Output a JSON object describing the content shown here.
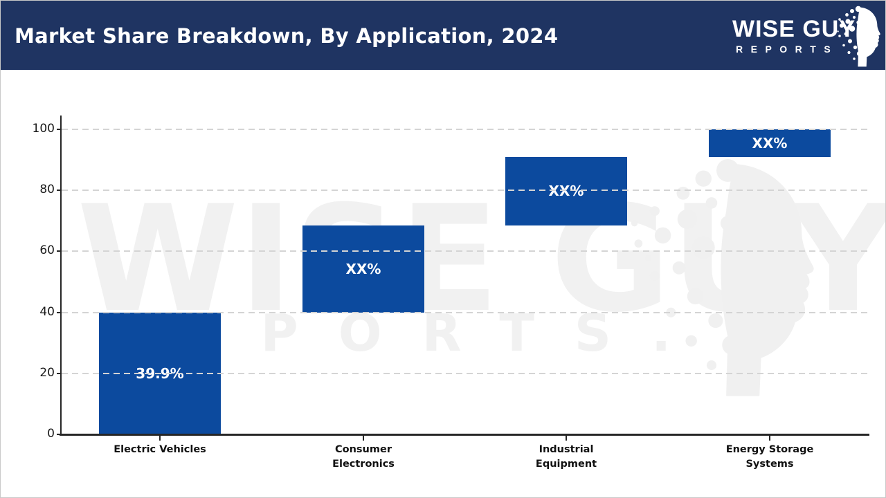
{
  "page": {
    "background": "#ffffff",
    "border_color": "#c9c9c9"
  },
  "header": {
    "title": "Market Share Breakdown, By Application, 2024",
    "background": "#1f3462",
    "text_color": "#ffffff",
    "logo": {
      "line1": "WISE GUY",
      "line2": "REPORTS"
    }
  },
  "watermark": {
    "line1": "WISE GUY.",
    "line2": "REPORTS.",
    "color": "#f1f1f1"
  },
  "chart_data": {
    "type": "bar",
    "variant": "waterfall-breakdown",
    "title": "Market Share Breakdown, By Application, 2024",
    "categories": [
      "Electric Vehicles",
      "Consumer Electronics",
      "Industrial Equipment",
      "Energy Storage Systems"
    ],
    "category_lines": [
      [
        "Electric Vehicles"
      ],
      [
        "Consumer",
        "Electronics"
      ],
      [
        "Industrial",
        "Equipment"
      ],
      [
        "Energy Storage",
        "Systems"
      ]
    ],
    "segments": [
      {
        "category": "Electric Vehicles",
        "start": 0,
        "end": 39.9,
        "label": "39.9%"
      },
      {
        "category": "Consumer Electronics",
        "start": 40,
        "end": 68.5,
        "label": "XX%"
      },
      {
        "category": "Industrial Equipment",
        "start": 68.5,
        "end": 91,
        "label": "XX%"
      },
      {
        "category": "Energy Storage Systems",
        "start": 91,
        "end": 100,
        "label": "XX%"
      }
    ],
    "xlabel": "",
    "ylabel": "",
    "ylim": [
      0,
      100
    ],
    "yticks": [
      0,
      20,
      40,
      60,
      80,
      100
    ],
    "grid": {
      "horizontal": true,
      "style": "dashed",
      "color": "#d4d4d4",
      "on_top_of_bars": true
    },
    "legend": "none",
    "bar_color": "#0c4a9e",
    "bar_label_color": "#ffffff",
    "axis_color": "#262626",
    "tick_label_color": "#1a1a1a"
  }
}
